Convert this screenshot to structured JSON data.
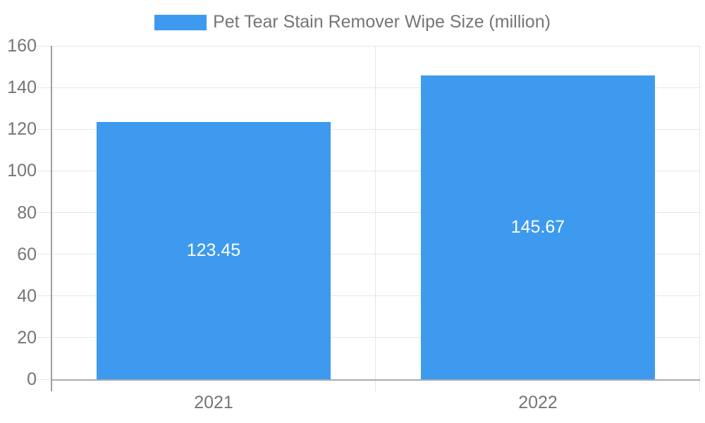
{
  "legend": {
    "label": "Pet Tear Stain Remover Wipe Size (million)"
  },
  "chart_data": {
    "type": "bar",
    "title": "Pet Tear Stain Remover Wipe Size (million)",
    "categories": [
      "2021",
      "2022"
    ],
    "values": [
      123.45,
      145.67
    ],
    "value_labels": [
      "123.45",
      "145.67"
    ],
    "xlabel": "",
    "ylabel": "",
    "ylim": [
      0,
      160
    ],
    "ytick_step": 20,
    "yticks": [
      0,
      20,
      40,
      60,
      80,
      100,
      120,
      140,
      160
    ],
    "grid": true,
    "legend_position": "top-center",
    "bar_width_fraction": 0.72,
    "colors": {
      "bar": "#3D9AEE",
      "legend_text": "#757575",
      "tick_text": "#757575",
      "value_text": "#FFFFFF",
      "gridline": "#E6E6E6",
      "axis": "#9E9E9E",
      "baseline": "#ABABAB",
      "background": "#FFFFFF"
    }
  }
}
